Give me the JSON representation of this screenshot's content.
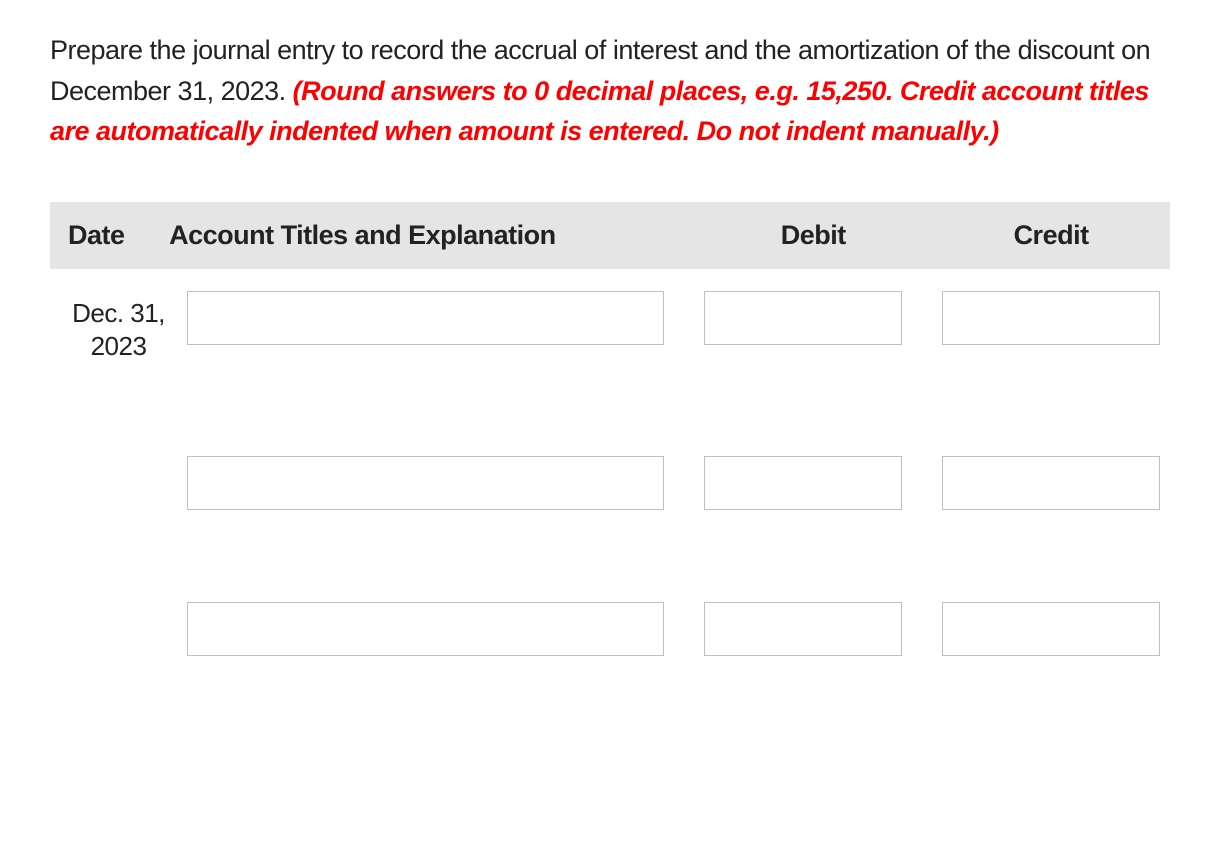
{
  "instruction": {
    "text_before": "Prepare the journal entry to record the accrual of interest and the amortization of the discount on December 31, 2023. ",
    "red_text": "(Round answers to 0 decimal places, e.g. 15,250. Credit account titles are automatically indented when amount is entered. Do not indent manually.)"
  },
  "table": {
    "headers": {
      "date": "Date",
      "account": "Account Titles and Explanation",
      "debit": "Debit",
      "credit": "Credit"
    },
    "rows": [
      {
        "date_line1": "Dec. 31,",
        "date_line2": "2023",
        "account": "",
        "debit": "",
        "credit": ""
      },
      {
        "date_line1": "",
        "date_line2": "",
        "account": "",
        "debit": "",
        "credit": ""
      },
      {
        "date_line1": "",
        "date_line2": "",
        "account": "",
        "debit": "",
        "credit": ""
      }
    ]
  },
  "colors": {
    "instruction_text": "#222222",
    "red_highlight": "#ff0000",
    "header_bg": "#e5e5e5",
    "input_border": "#bfbfbf",
    "background": "#ffffff"
  },
  "typography": {
    "instruction_fontsize": 27,
    "header_fontsize": 27,
    "header_fontweight": 700,
    "date_fontsize": 26,
    "input_fontsize": 22
  },
  "layout": {
    "col_date_width": 120,
    "col_account_width": 530,
    "col_debit_width": 240,
    "col_credit_width": 240,
    "input_height": 54
  }
}
